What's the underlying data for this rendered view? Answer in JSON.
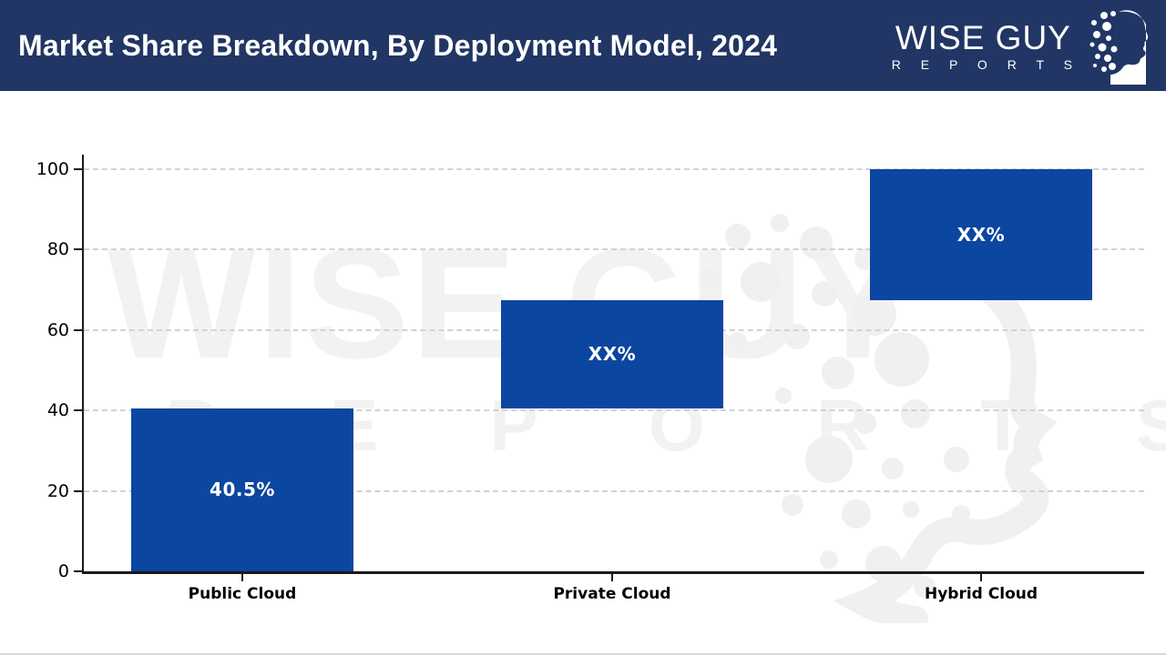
{
  "header": {
    "title": "Market Share Breakdown, By Deployment Model, 2024",
    "logo": {
      "wordmark": "WISE GUY",
      "subtitle": "R E P O R T S"
    },
    "colors": {
      "background": "#213664",
      "text": "#ffffff"
    }
  },
  "watermark": {
    "wordmark": "WISE GUY",
    "subtitle": "R E P O R T S"
  },
  "chart_data": {
    "type": "bar",
    "subtype": "waterfall-stacked",
    "title": "Market Share Breakdown, By Deployment Model, 2024",
    "categories": [
      "Public Cloud",
      "Private Cloud",
      "Hybrid Cloud"
    ],
    "bars": [
      {
        "category": "Public Cloud",
        "start": 0,
        "end": 40.5,
        "label": "40.5%"
      },
      {
        "category": "Private Cloud",
        "start": 40.5,
        "end": 67.5,
        "label": "XX%"
      },
      {
        "category": "Hybrid Cloud",
        "start": 67.5,
        "end": 100,
        "label": "XX%"
      }
    ],
    "yticks": [
      0,
      20,
      40,
      60,
      80,
      100
    ],
    "ylim": [
      0,
      103.6
    ],
    "xlabel": "",
    "ylabel": "",
    "legend": "none",
    "grid": {
      "axis": "y",
      "style": "dashed",
      "color": "#d2d2d2"
    },
    "colors": {
      "bar": "#0b46a0",
      "bar_label": "#ffffff",
      "axis": "#1a1a1a",
      "tick_label": "#000000"
    }
  }
}
